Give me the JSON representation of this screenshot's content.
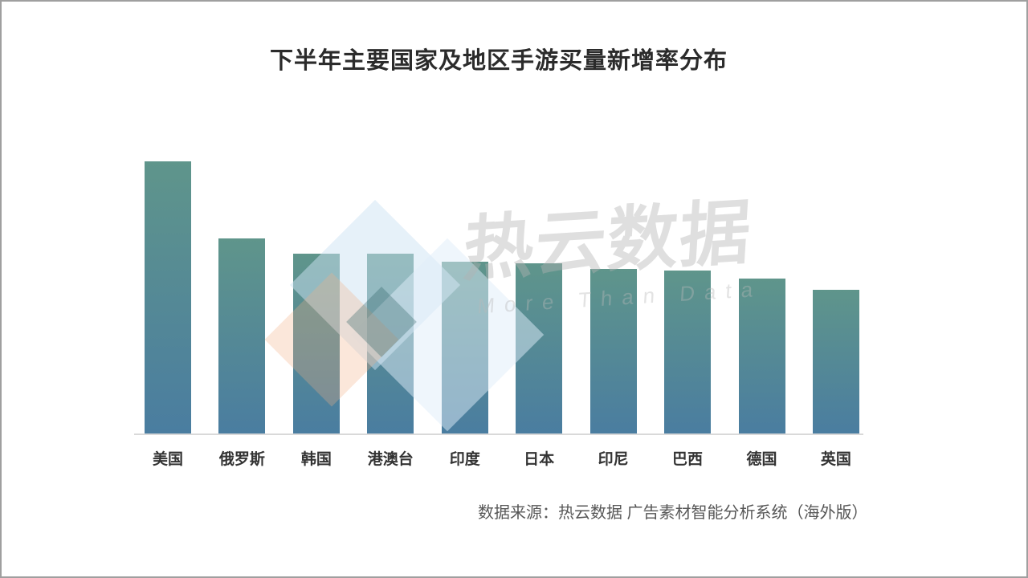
{
  "page": {
    "title": "下半年主要国家及地区手游买量新增率分布",
    "source_note": "数据来源：热云数据 广告素材智能分析系统（海外版）"
  },
  "watermark": {
    "brand_text": "热云数据",
    "tagline": "More Than Data"
  },
  "chart_data": {
    "type": "bar",
    "title": "下半年主要国家及地区手游买量新增率分布",
    "categories": [
      "美国",
      "俄罗斯",
      "韩国",
      "港澳台",
      "印度",
      "日本",
      "印尼",
      "巴西",
      "德国",
      "英国"
    ],
    "values_relative_pct_of_max": [
      100,
      71.7,
      66.0,
      66.0,
      63.1,
      62.5,
      60.4,
      59.8,
      56.9,
      52.8
    ],
    "value_labels_shown": false,
    "y_axis_shown": false,
    "x_axis_line": true,
    "grid": false,
    "legend_position": "none",
    "bar_color_top": "#5f958b",
    "bar_color_bottom": "#4a7da0",
    "axis_line_color": "#d9d9d9",
    "note": "No numeric axis or data labels are shown in the source image; values are relative bar heights (tallest bar = 100)."
  }
}
